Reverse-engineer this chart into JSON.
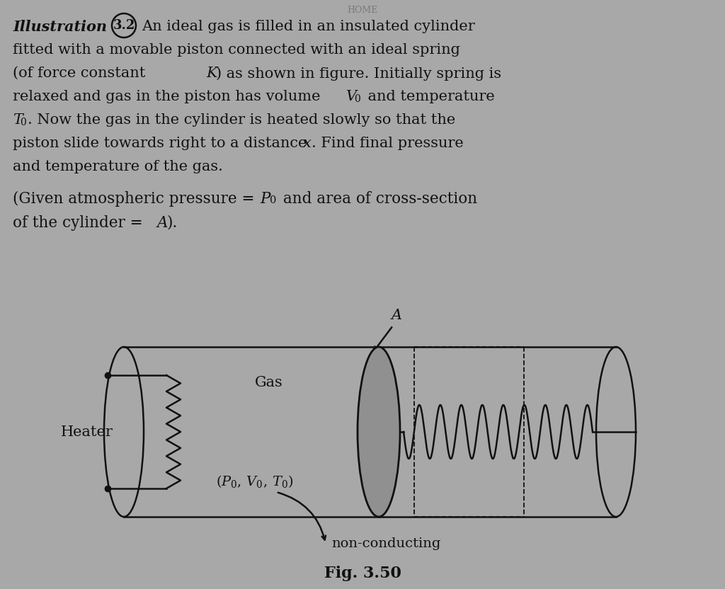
{
  "bg_color": "#a8a8a8",
  "text_color": "#111111",
  "fig_label": "Fig. 3.50",
  "gas_label": "Gas",
  "heater_label": "Heater",
  "A_label": "A",
  "non_conducting_label": "non-conducting",
  "piston_label": "(P_0, V_0, T_0)",
  "home_text": "HOME",
  "title_illustration": "Illustration",
  "title_num": "3.2",
  "line1_pre": "An ideal gas is filled in an insulated cylinder",
  "line2": "fitted with a movable piston connected with an ideal spring",
  "line3_pre": "(of force constant ",
  "line3_K": "K",
  "line3_post": ") as shown in figure. Initially spring is",
  "line4_pre": "relaxed and gas in the piston has volume ",
  "line4_V": "V",
  "line4_sub": "0",
  "line4_post": " and temperature",
  "line5_T": "T",
  "line5_sub": "0",
  "line5_post": ". Now the gas in the cylinder is heated slowly so that the",
  "line6_pre": "piston slide towards right to a distance ",
  "line6_x": "x",
  "line6_post": ". Find final pressure",
  "line7": "and temperature of the gas.",
  "line8_pre": "(Given atmospheric pressure = ",
  "line8_P": "P",
  "line8_sub": "0",
  "line8_post": " and area of cross-section",
  "line9_pre": "of the cylinder = ",
  "line9_A": "A",
  "line9_post": ")."
}
